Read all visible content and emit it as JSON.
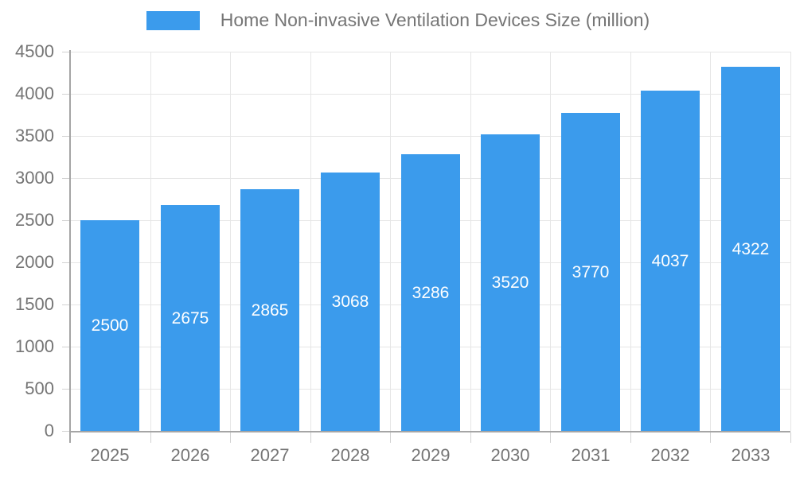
{
  "chart_data": {
    "type": "bar",
    "title": "Home Non-invasive Ventilation Devices Size (million)",
    "categories": [
      "2025",
      "2026",
      "2027",
      "2028",
      "2029",
      "2030",
      "2031",
      "2032",
      "2033"
    ],
    "series": [
      {
        "name": "Home Non-invasive Ventilation Devices Size (million)",
        "values": [
          2500,
          2675,
          2865,
          3068,
          3286,
          3520,
          3770,
          4037,
          4322
        ]
      }
    ],
    "bar_labels": [
      "2500",
      "2675",
      "2865",
      "3068",
      "3286",
      "3520",
      "3770",
      "4037",
      "4322"
    ],
    "xlabel": "",
    "ylabel": "",
    "ylim": [
      0,
      4500
    ],
    "yticks": [
      0,
      500,
      1000,
      1500,
      2000,
      2500,
      3000,
      3500,
      4000,
      4500
    ],
    "ytick_labels": [
      "0",
      "500",
      "1000",
      "1500",
      "2000",
      "2500",
      "3000",
      "3500",
      "4000",
      "4500"
    ],
    "grid": true,
    "legend_position": "top"
  },
  "legend": {
    "label": "Home Non-invasive Ventilation Devices Size (million)"
  },
  "colors": {
    "bar": "#3b9bec",
    "bar_label_text": "#ffffff",
    "axis_text": "#757575",
    "gridline": "#e6e6e6",
    "tick": "#d2d2d2",
    "axis_line": "#a5a5a5",
    "background": "#ffffff"
  }
}
